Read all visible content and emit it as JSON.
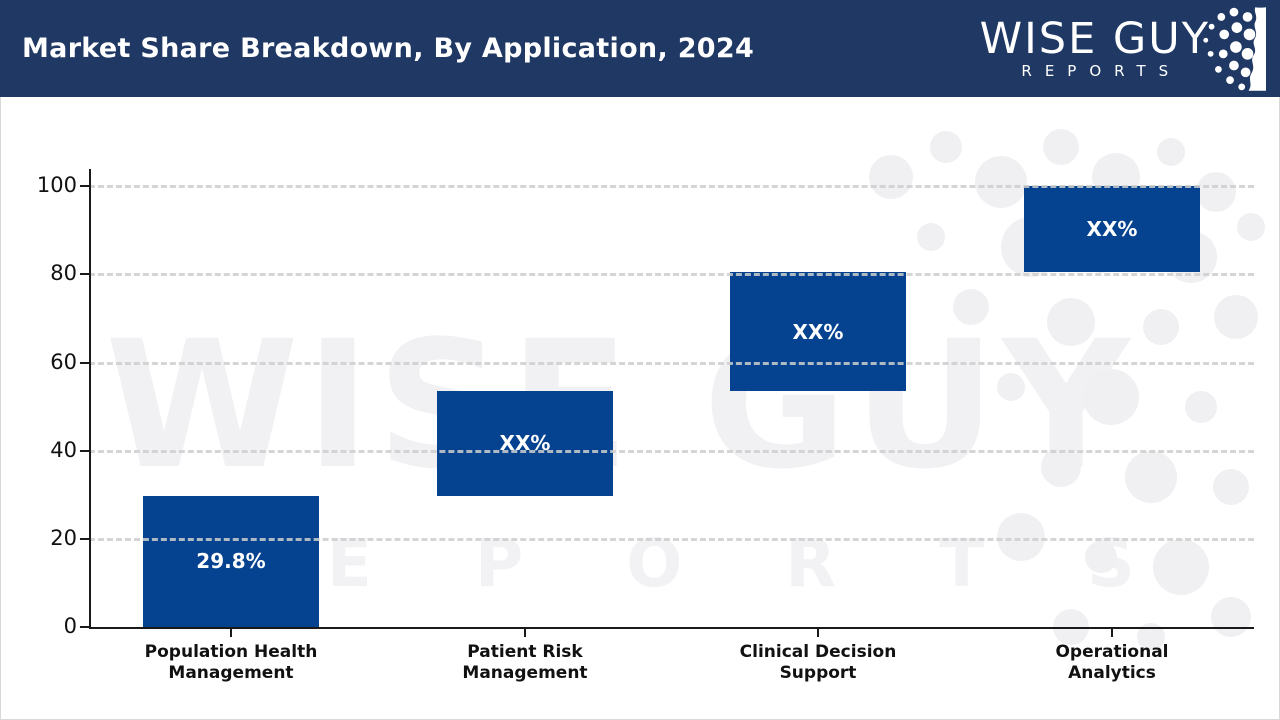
{
  "header": {
    "title": "Market Share Breakdown, By Application, 2024",
    "logo": {
      "brand_line1": "WISE GUY",
      "brand_line2": "REPORTS"
    }
  },
  "watermark": {
    "line1": "WISE GUY",
    "line2": "R E P O R T S"
  },
  "chart_data": {
    "type": "bar",
    "variant": "floating-waterfall",
    "title": "Market Share Breakdown, By Application, 2024",
    "categories": [
      "Population Health Management",
      "Patient Risk Management",
      "Clinical Decision Support",
      "Operational Analytics"
    ],
    "category_lines": [
      [
        "Population Health",
        "Management"
      ],
      [
        "Patient Risk",
        "Management"
      ],
      [
        "Clinical Decision",
        "Support"
      ],
      [
        "Operational",
        "Analytics"
      ]
    ],
    "series": [
      {
        "name": "Market Share (%)",
        "ranges": [
          [
            0,
            29.8
          ],
          [
            29.8,
            53.5
          ],
          [
            53.5,
            80.5
          ],
          [
            80.5,
            100
          ]
        ]
      }
    ],
    "bar_labels": [
      "29.8%",
      "XX%",
      "XX%",
      "XX%"
    ],
    "yticks": [
      0,
      20,
      40,
      60,
      80,
      100
    ],
    "ylim": [
      0,
      104
    ],
    "xlabel": "",
    "ylabel": "",
    "grid": "horizontal-dashed",
    "legend": "none",
    "colors": {
      "bar": "#05428F",
      "header_bg": "#1F3864",
      "grid": "#D7D7D7",
      "axis": "#1A1A1A",
      "bar_label": "#FFFFFF",
      "tick_label": "#111111",
      "watermark": "#F1F1F4"
    }
  }
}
